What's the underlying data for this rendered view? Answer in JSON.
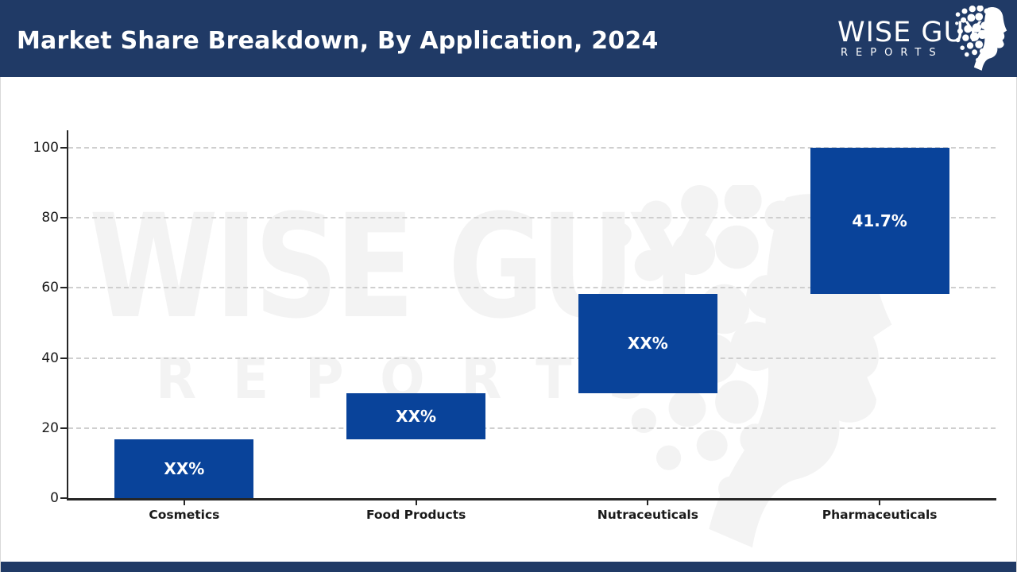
{
  "page": {
    "bg": "#ffffff",
    "border_color": "#d9d9d9"
  },
  "header": {
    "bg": "#203A66",
    "title": "Market Share Breakdown, By Application, 2024",
    "title_color": "#ffffff",
    "logo": {
      "line1": "WISE GUY",
      "line2": "REPORTS",
      "color": "#ffffff",
      "head_icon": "dotted-head-profile"
    }
  },
  "watermark": {
    "line1": "WISE GUY",
    "line2": "REPORTS",
    "color": "#f3f3f3",
    "head_icon": "dotted-head-profile"
  },
  "footer": {
    "bg": "#203A66"
  },
  "chart_data": {
    "type": "bar",
    "subtype": "floating-waterfall",
    "title": "Market Share Breakdown, By Application, 2024",
    "categories": [
      "Cosmetics",
      "Food Products",
      "Nutraceuticals",
      "Pharmaceuticals"
    ],
    "series": [
      {
        "name": "Market share (%)",
        "segments": [
          {
            "category": "Cosmetics",
            "start": 0,
            "end": 16.7,
            "value": 16.7,
            "label": "XX%"
          },
          {
            "category": "Food Products",
            "start": 16.7,
            "end": 30,
            "value": 13.3,
            "label": "XX%"
          },
          {
            "category": "Nutraceuticals",
            "start": 30,
            "end": 58.3,
            "value": 28.3,
            "label": "XX%"
          },
          {
            "category": "Pharmaceuticals",
            "start": 58.3,
            "end": 100,
            "value": 41.7,
            "label": "41.7%"
          }
        ]
      }
    ],
    "ylim": [
      0,
      100
    ],
    "yticks": [
      0,
      20,
      40,
      60,
      80,
      100
    ],
    "xlabel": "",
    "ylabel": "",
    "grid": "horizontal-dashed",
    "legend": "none",
    "bar_color": "#09439A",
    "bar_label_color": "#ffffff",
    "axis_color": "#262626",
    "grid_color": "#cfcfcf",
    "tick_label_color": "#1a1a1a"
  }
}
